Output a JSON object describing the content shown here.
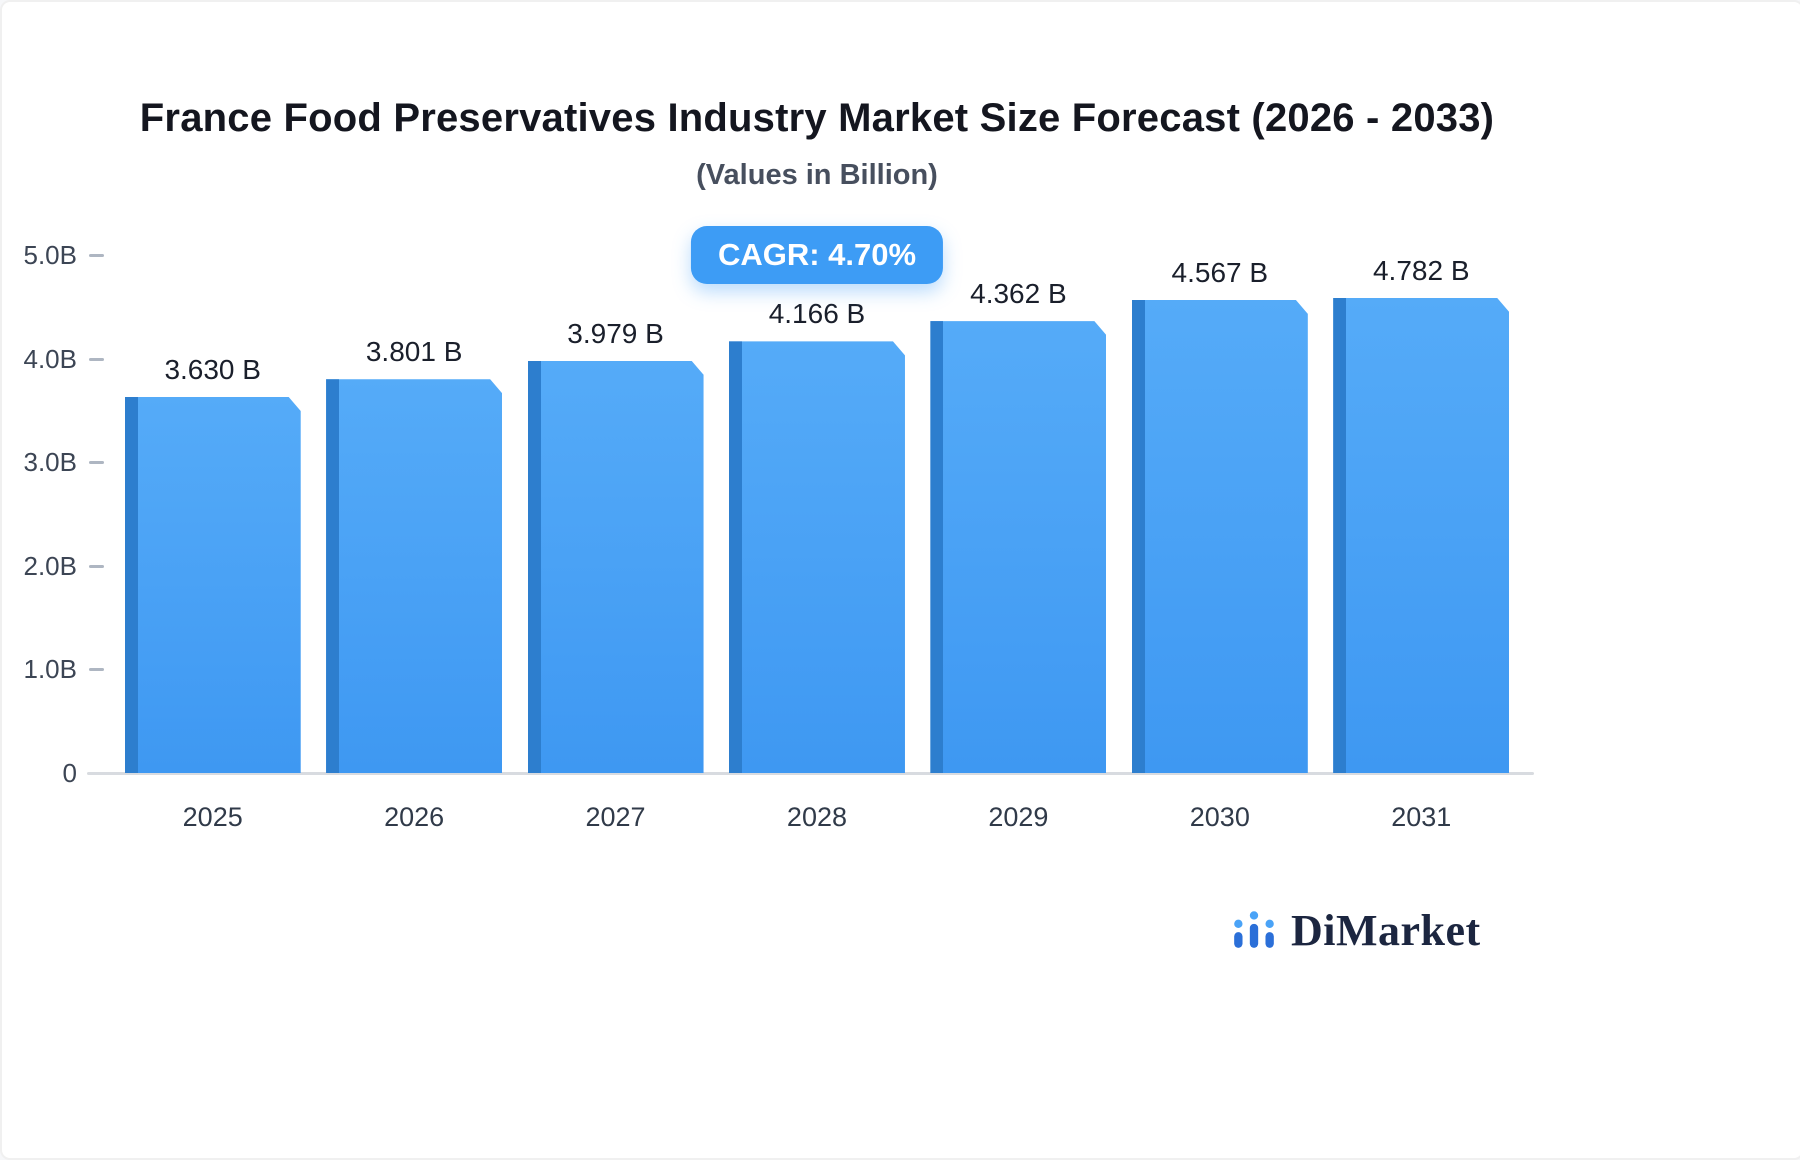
{
  "header": {
    "title": "France Food Preservatives Industry Market Size Forecast (2026 - 2033)",
    "subtitle": "(Values in Billion)"
  },
  "badge": {
    "label": "CAGR: 4.70%"
  },
  "logo": {
    "name": "DiMarket",
    "icon": "bar-chart-logo-icon"
  },
  "chart_data": {
    "type": "bar",
    "title": "France Food Preservatives Industry Market Size Forecast (2026 - 2033)",
    "subtitle": "(Values in Billion)",
    "cagr": "4.70%",
    "categories": [
      "2025",
      "2026",
      "2027",
      "2028",
      "2029",
      "2030",
      "2031"
    ],
    "values": [
      3.63,
      3.801,
      3.979,
      4.166,
      4.362,
      4.567,
      4.782
    ],
    "value_labels": [
      "3.630 B",
      "3.801 B",
      "3.979 B",
      "4.166 B",
      "4.362 B",
      "4.567 B",
      "4.782 B"
    ],
    "xlabel": "",
    "ylabel": "",
    "ylim": [
      0,
      5
    ],
    "yticks": [
      {
        "value": 5,
        "label": "5.0B"
      },
      {
        "value": 4,
        "label": "4.0B"
      },
      {
        "value": 3,
        "label": "3.0B"
      },
      {
        "value": 2,
        "label": "2.0B"
      },
      {
        "value": 1,
        "label": "1.0B"
      },
      {
        "value": 0,
        "label": "0"
      }
    ],
    "grid": false,
    "legend": false,
    "colors": {
      "bar_gradient_top": "#55ABF8",
      "bar_gradient_bottom": "#3E98F2",
      "bar_side": "#2D7ECE",
      "badge_bg": "#3D9CF5",
      "axis_text": "#3C4554",
      "baseline": "#D8DBE0"
    }
  }
}
